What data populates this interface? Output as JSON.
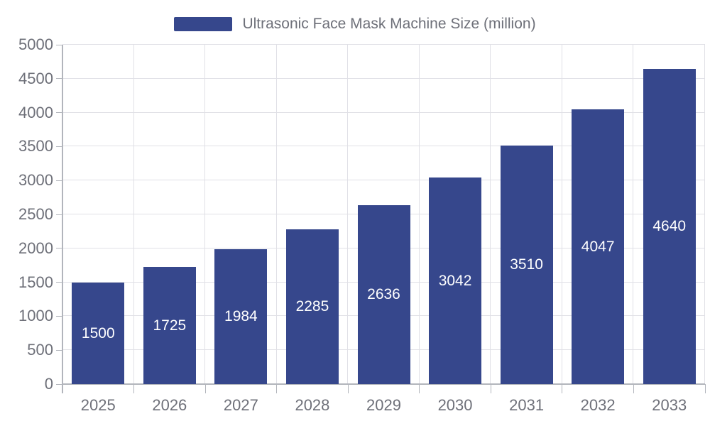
{
  "legend": {
    "label": "Ultrasonic Face Mask Machine Size (million)"
  },
  "colors": {
    "bar": "#36478C",
    "bar_label": "#FFFFFF",
    "legend_text": "#6E7079",
    "axis_label": "#6E7079",
    "axis_line": "#B2B5BC",
    "grid_line": "#E0E0E6",
    "background": "#FFFFFF"
  },
  "chart_data": {
    "type": "bar",
    "title": "Ultrasonic Face Mask Machine Size (million)",
    "categories": [
      "2025",
      "2026",
      "2027",
      "2028",
      "2029",
      "2030",
      "2031",
      "2032",
      "2033"
    ],
    "series": [
      {
        "name": "Ultrasonic Face Mask Machine Size (million)",
        "values": [
          1500,
          1725,
          1984,
          2285,
          2636,
          3042,
          3510,
          4047,
          4640
        ]
      }
    ],
    "xlabel": "",
    "ylabel": "",
    "ylim": [
      0,
      5000
    ],
    "ytick_step": 500,
    "grid": true,
    "legend_position": "top-center",
    "bar_label_position": "inside-middle"
  }
}
